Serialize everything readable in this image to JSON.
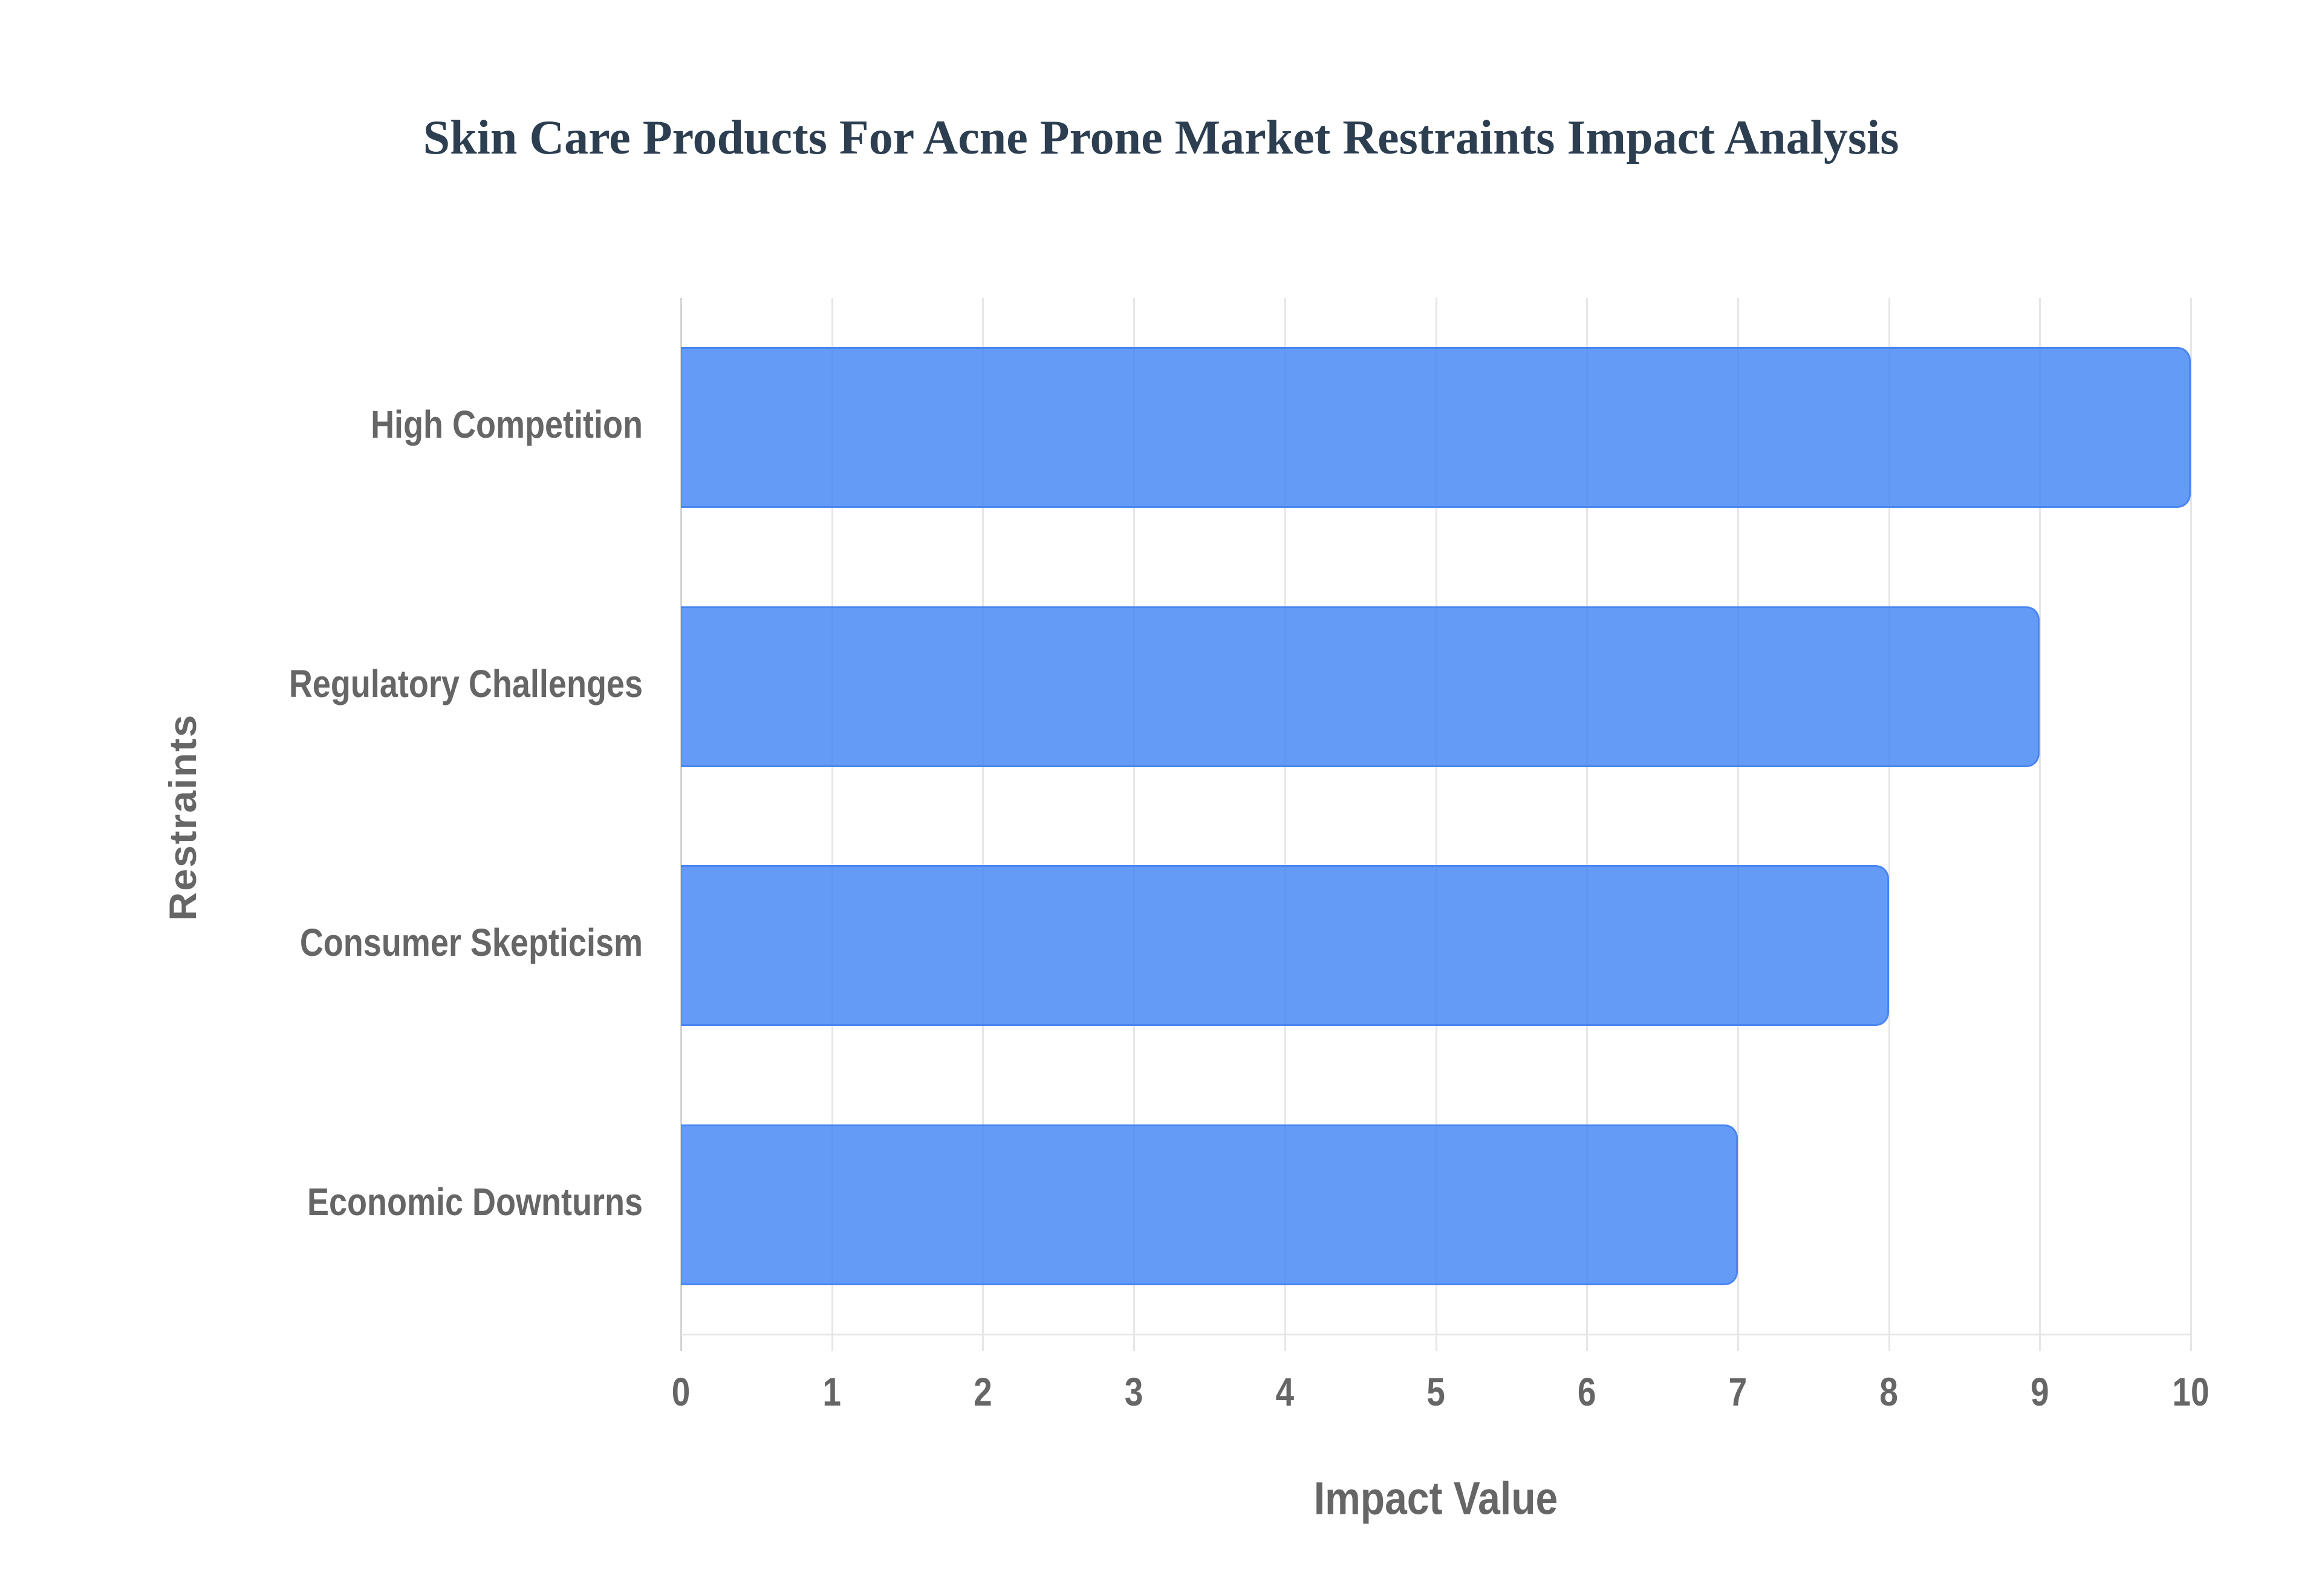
{
  "chart_data": {
    "type": "bar",
    "orientation": "horizontal",
    "title": "Skin Care Products For Acne Prone Market Restraints Impact Analysis",
    "xlabel": "Impact Value",
    "ylabel": "Restraints",
    "categories": [
      "High Competition",
      "Regulatory Challenges",
      "Consumer Skepticism",
      "Economic Downturns"
    ],
    "values": [
      10,
      9,
      8,
      7
    ],
    "xlim": [
      0,
      10
    ],
    "xticks": [
      "0",
      "1",
      "2",
      "3",
      "4",
      "5",
      "6",
      "7",
      "8",
      "9",
      "10"
    ],
    "grid": true,
    "legend": false,
    "bar_color": "#6399f5",
    "bar_border_color": "#4a86f0"
  }
}
